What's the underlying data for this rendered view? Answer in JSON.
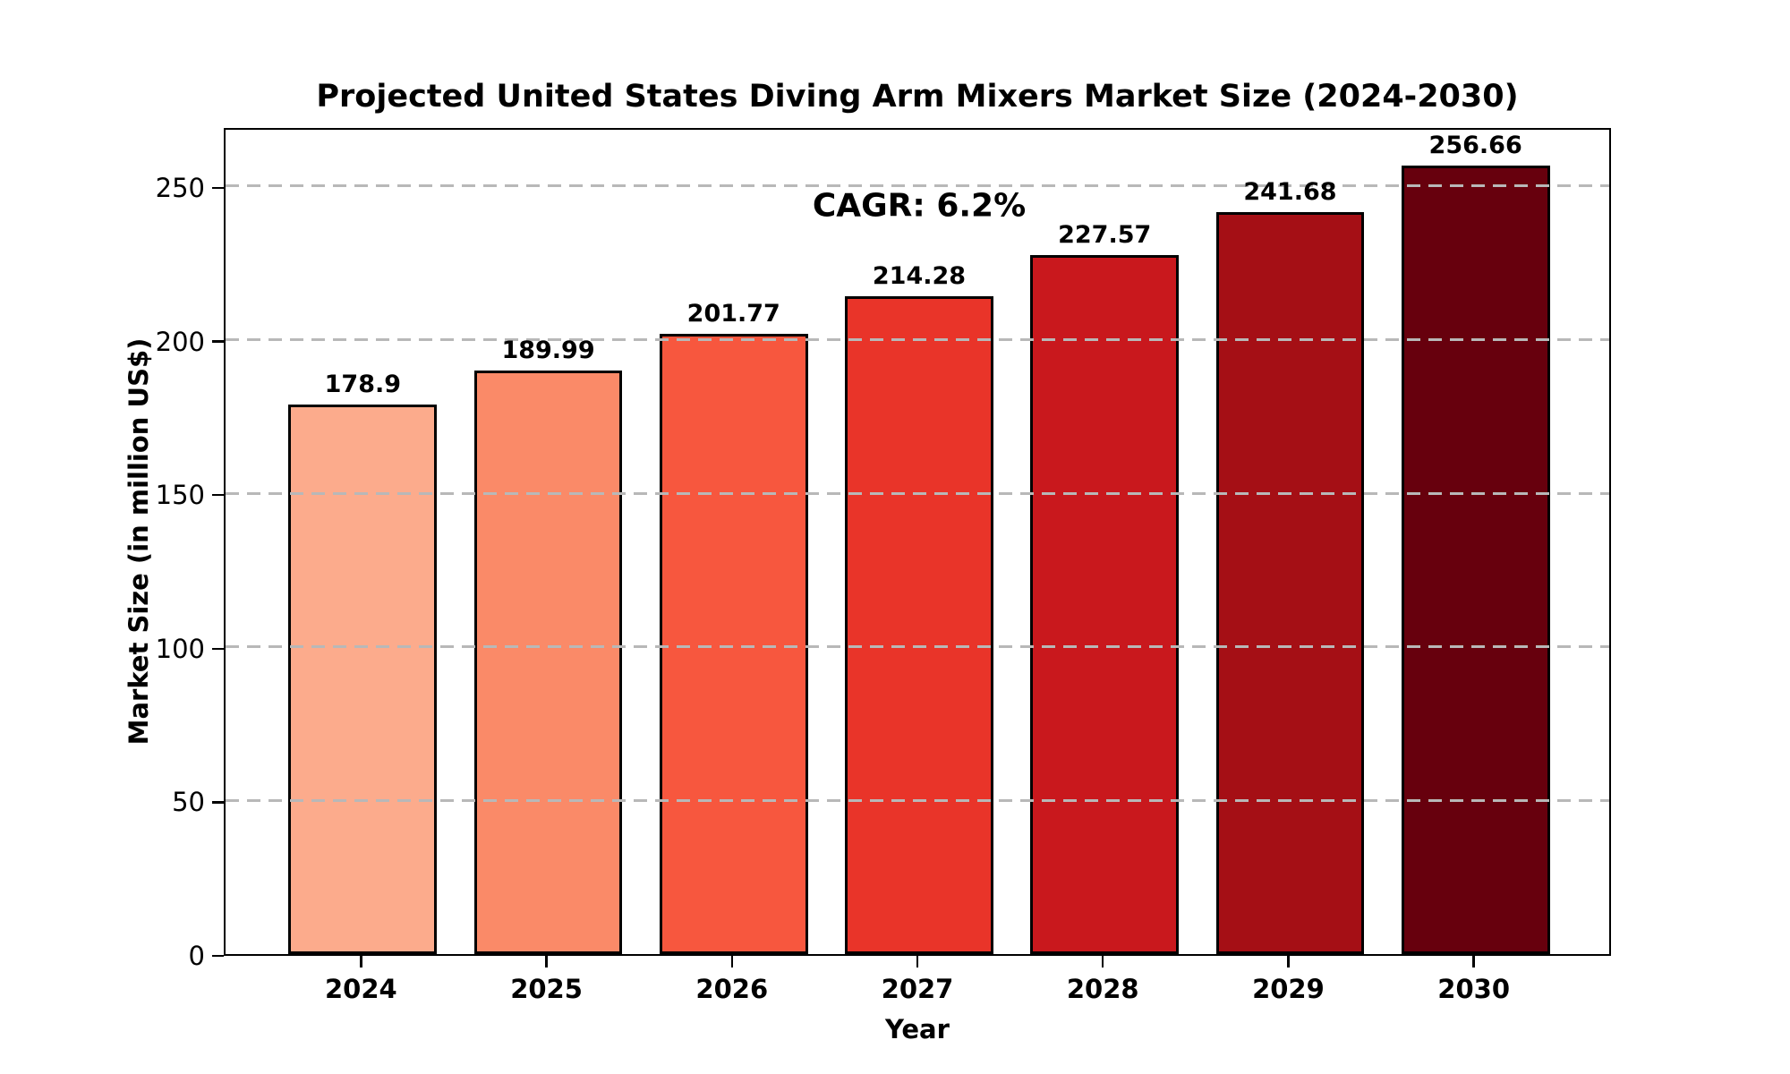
{
  "chart_data": {
    "type": "bar",
    "title": "Projected United States Diving Arm Mixers Market Size (2024-2030)",
    "xlabel": "Year",
    "ylabel": "Market Size (in million US$)",
    "annotation": "CAGR: 6.2%",
    "categories": [
      "2024",
      "2025",
      "2026",
      "2027",
      "2028",
      "2029",
      "2030"
    ],
    "values": [
      178.9,
      189.99,
      201.77,
      214.28,
      227.57,
      241.68,
      256.66
    ],
    "value_labels": [
      "178.9",
      "189.99",
      "201.77",
      "214.28",
      "227.57",
      "241.68",
      "256.66"
    ],
    "bar_colors": [
      "#fcab8c",
      "#fa8a68",
      "#f7573e",
      "#e93429",
      "#c9181d",
      "#a50f15",
      "#67000d"
    ],
    "bar_edge_color": "#000000",
    "ylim": [
      0,
      269.5
    ],
    "yticks": [
      0,
      50,
      100,
      150,
      200,
      250
    ],
    "grid": "horizontal-dashed",
    "gridline_color": "#b8b8b8",
    "legend": "none",
    "background": "#ffffff"
  }
}
